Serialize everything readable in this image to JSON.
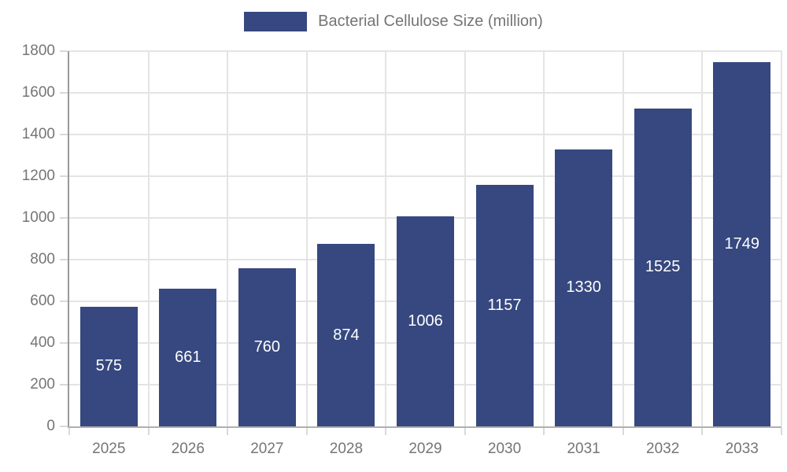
{
  "legend": {
    "label": "Bacterial Cellulose Size (million)"
  },
  "colors": {
    "bar": "#36487F",
    "grid": "#e4e4e4",
    "tick": "#d9d9d9",
    "axis": "#9a9a9a",
    "baseline": "#b0b0b0",
    "text": "#757575",
    "value_label": "#ffffff"
  },
  "chart_data": {
    "type": "bar",
    "title": "Bacterial Cellulose Size (million)",
    "categories": [
      "2025",
      "2026",
      "2027",
      "2028",
      "2029",
      "2030",
      "2031",
      "2032",
      "2033"
    ],
    "values": [
      575,
      661,
      760,
      874,
      1006,
      1157,
      1330,
      1525,
      1749
    ],
    "xlabel": "",
    "ylabel": "",
    "ylim": [
      0,
      1800
    ],
    "ytick_step": 200,
    "grid": true,
    "legend_position": "top",
    "value_labels": "inside-center"
  }
}
